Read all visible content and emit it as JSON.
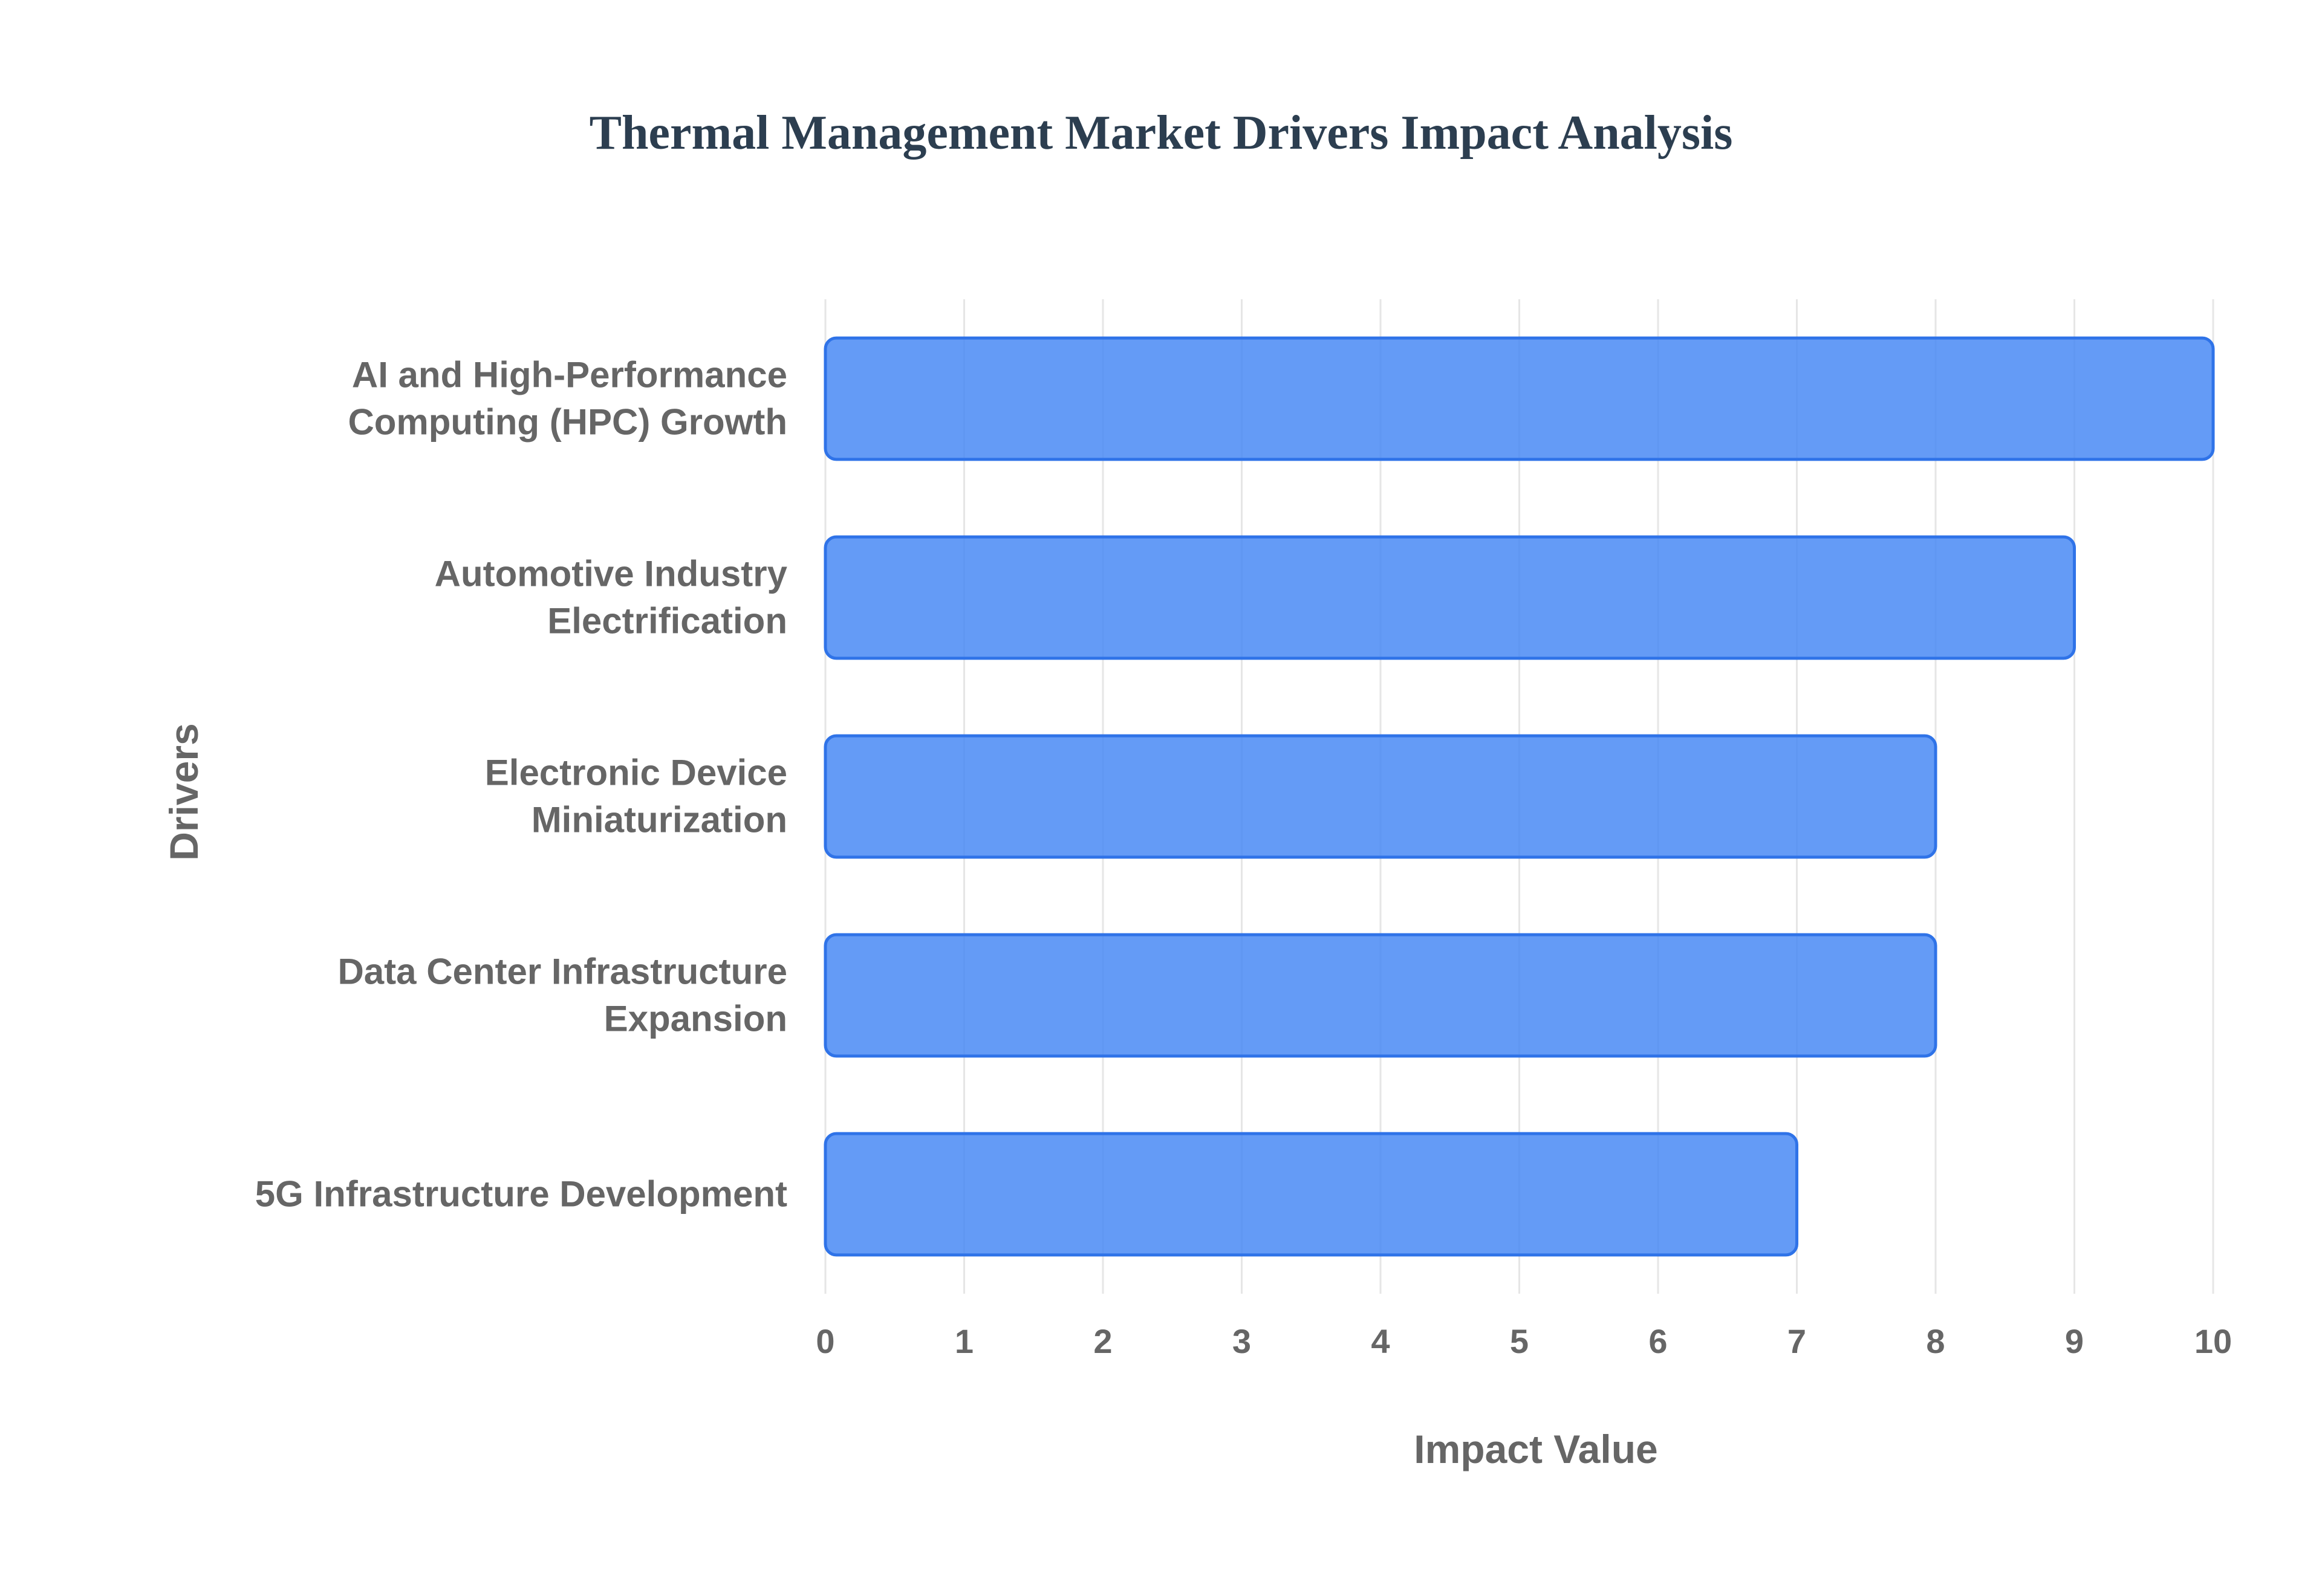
{
  "chart_data": {
    "type": "bar",
    "orientation": "horizontal",
    "title": "Thermal Management Market Drivers Impact Analysis",
    "xlabel": "Impact Value",
    "ylabel": "Drivers",
    "categories": [
      [
        "AI and High-Performance",
        "Computing (HPC) Growth"
      ],
      [
        "Automotive Industry",
        "Electrification"
      ],
      [
        "Electronic Device",
        "Miniaturization"
      ],
      [
        "Data Center Infrastructure",
        "Expansion"
      ],
      [
        "5G Infrastructure Development"
      ]
    ],
    "values": [
      10,
      9,
      8,
      8,
      7
    ],
    "xlim": [
      0,
      10
    ],
    "xticks": [
      0,
      1,
      2,
      3,
      4,
      5,
      6,
      7,
      8,
      9,
      10
    ],
    "grid": true,
    "legend": "none",
    "colors": {
      "bar_fill": "#4285f4",
      "bar_stroke": "#2f73e8",
      "text": "#666666",
      "title": "#2c3e50"
    }
  }
}
